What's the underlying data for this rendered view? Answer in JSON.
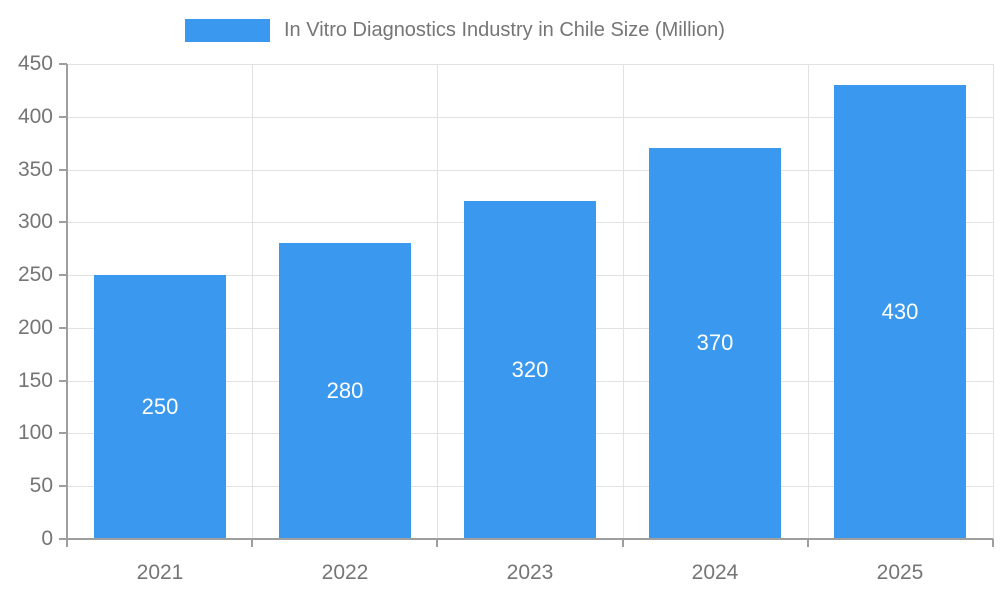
{
  "legend": {
    "label": "In Vitro Diagnostics Industry in Chile Size (Million)",
    "swatch_color": "#3a99ee"
  },
  "chart_data": {
    "type": "bar",
    "title": "In Vitro Diagnostics Industry in Chile Size (Million)",
    "series": [
      {
        "name": "In Vitro Diagnostics Industry in Chile Size (Million)",
        "values": [
          250,
          280,
          320,
          370,
          430
        ]
      }
    ],
    "categories": [
      "2021",
      "2022",
      "2023",
      "2024",
      "2025"
    ],
    "data_labels": [
      "250",
      "280",
      "320",
      "370",
      "430"
    ],
    "xlabel": "",
    "ylabel": "",
    "ylim": [
      0,
      450
    ],
    "y_ticks": [
      0,
      50,
      100,
      150,
      200,
      250,
      300,
      350,
      400,
      450
    ],
    "grid": "horizontal and vertical light gray gridlines",
    "legend_position": "top-center",
    "colors": {
      "bar": "#3a99ee",
      "data_label": "#ffffff",
      "axis_text": "#757575",
      "grid_line": "#e2e2e2",
      "axis_line": "#9e9e9e",
      "background": "#ffffff"
    }
  }
}
